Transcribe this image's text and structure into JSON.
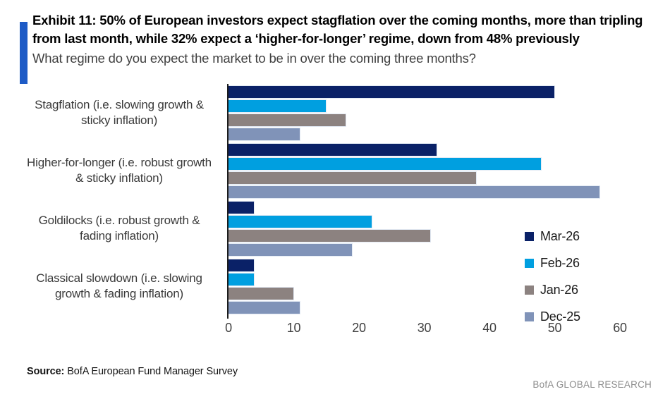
{
  "header": {
    "exhibit_title": "Exhibit 11: 50% of European investors expect stagflation over the coming months, more than tripling from last month, while 32% expect a ‘higher-for-longer’ regime, down from 48% previously",
    "question": "What regime do you expect the market to be in over the coming three months?"
  },
  "footer": {
    "source_label": "Source:",
    "source_text": " BofA European Fund Manager Survey",
    "brand": "BofA GLOBAL RESEARCH"
  },
  "colors": {
    "accent_bar": "#1e5bc6",
    "axis_line": "#1c1c1c",
    "tick_text": "#3f3f3f"
  },
  "chart_data": {
    "type": "bar",
    "orientation": "horizontal",
    "title": "What regime do you expect the market to be in over the coming three months?",
    "xlabel": "",
    "ylabel": "",
    "xlim": [
      0,
      62
    ],
    "x_ticks": [
      0,
      10,
      20,
      30,
      40,
      50,
      60
    ],
    "grid": false,
    "legend_position": "right-middle",
    "unit": "percent of investors",
    "categories": [
      "Stagflation (i.e. slowing growth &\nsticky inflation)",
      "Higher-for-longer (i.e. robust growth\n& sticky inflation)",
      "Goldilocks (i.e. robust growth &\nfading inflation)",
      "Classical slowdown (i.e. slowing\ngrowth & fading inflation)"
    ],
    "series": [
      {
        "name": "Mar-26",
        "color": "#0a2167",
        "values": [
          50,
          32,
          4,
          4
        ]
      },
      {
        "name": "Feb-26",
        "color": "#009fe0",
        "values": [
          15,
          48,
          22,
          4
        ]
      },
      {
        "name": "Jan-26",
        "color": "#8c8280",
        "values": [
          18,
          38,
          31,
          10
        ]
      },
      {
        "name": "Dec-25",
        "color": "#8093b8",
        "values": [
          11,
          57,
          19,
          11
        ]
      }
    ]
  }
}
